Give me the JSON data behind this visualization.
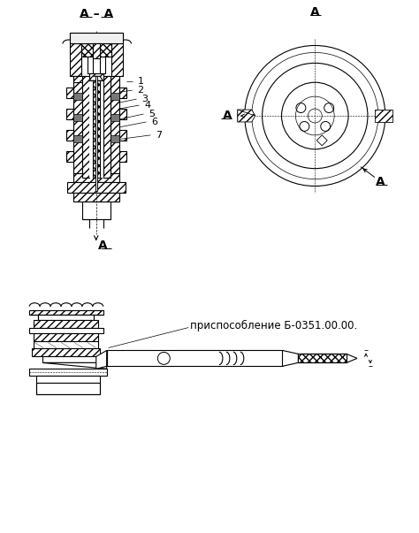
{
  "bg_color": "#ffffff",
  "line_color": "#000000",
  "fig_width": 4.74,
  "fig_height": 6.03,
  "dpi": 100,
  "label_AA": "А – А",
  "label_A": "А",
  "annotation_text": "приспособление Б-0351.00.00.",
  "lw": 0.8,
  "hatch_lw": 0.4
}
